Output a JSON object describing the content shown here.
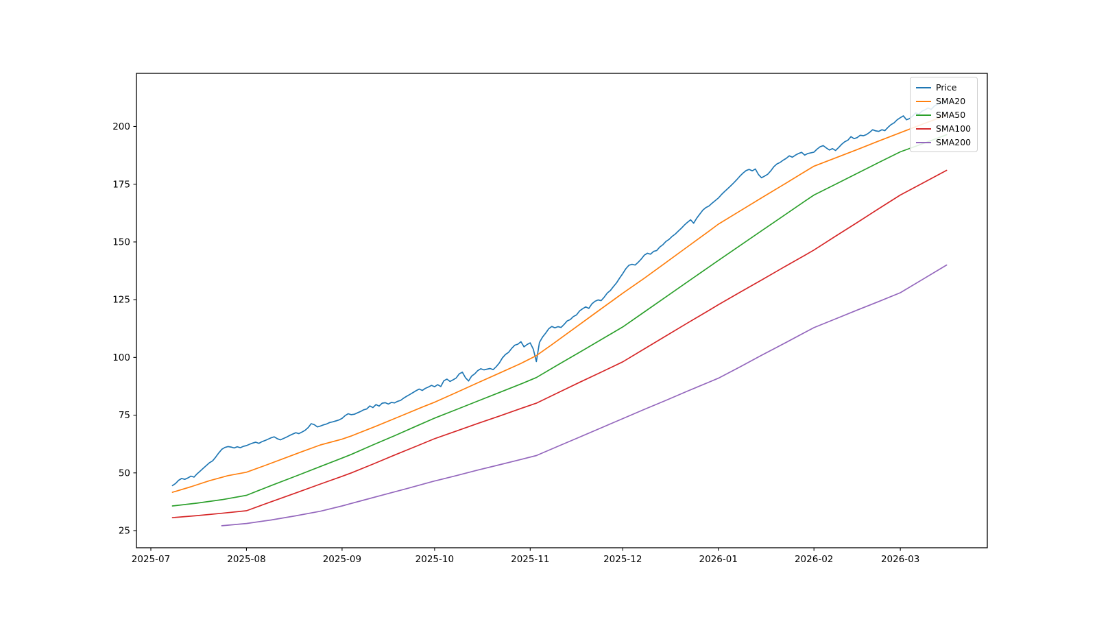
{
  "figure": {
    "kind": "matplotlib-line-figure",
    "background": "#ffffff"
  },
  "chart_data": {
    "type": "line",
    "title": "",
    "xlabel": "",
    "ylabel": "",
    "grid": false,
    "x_unit": "days_since_2025-07-01",
    "x_axis": {
      "range_days": [
        -4.67,
        271.2
      ],
      "ticks": [
        {
          "label": "2025-07",
          "day": 0
        },
        {
          "label": "2025-08",
          "day": 31
        },
        {
          "label": "2025-09",
          "day": 62
        },
        {
          "label": "2025-10",
          "day": 92
        },
        {
          "label": "2025-11",
          "day": 123
        },
        {
          "label": "2025-12",
          "day": 153
        },
        {
          "label": "2026-01",
          "day": 184
        },
        {
          "label": "2026-02",
          "day": 215
        },
        {
          "label": "2026-03",
          "day": 243
        }
      ]
    },
    "y_axis": {
      "range": [
        17.58,
        223.0
      ],
      "ticks": [
        {
          "label": "25",
          "value": 25
        },
        {
          "label": "50",
          "value": 50
        },
        {
          "label": "75",
          "value": 75
        },
        {
          "label": "100",
          "value": 100
        },
        {
          "label": "125",
          "value": 125
        },
        {
          "label": "150",
          "value": 150
        },
        {
          "label": "175",
          "value": 175
        },
        {
          "label": "200",
          "value": 200
        }
      ]
    },
    "legend": {
      "position": "upper-right",
      "entries": [
        "Price",
        "SMA20",
        "SMA50",
        "SMA100",
        "SMA200"
      ]
    },
    "series": [
      {
        "name": "Price",
        "color": "#1f77b4",
        "start_day": 7,
        "step": 1,
        "values": [
          44.5,
          45.4,
          46.8,
          47.6,
          47.2,
          47.8,
          48.6,
          48.2,
          49.6,
          50.8,
          52.0,
          53.2,
          54.4,
          55.2,
          56.8,
          58.6,
          60.2,
          61.0,
          61.4,
          61.2,
          60.8,
          61.3,
          60.9,
          61.5,
          61.8,
          62.4,
          62.9,
          63.3,
          62.8,
          63.5,
          64.0,
          64.6,
          65.2,
          65.6,
          64.8,
          64.3,
          64.9,
          65.5,
          66.2,
          66.8,
          67.4,
          67.0,
          67.7,
          68.4,
          69.6,
          71.3,
          70.9,
          69.9,
          70.3,
          70.8,
          71.2,
          71.8,
          72.1,
          72.5,
          72.9,
          73.6,
          74.8,
          75.6,
          75.2,
          75.4,
          76.0,
          76.6,
          77.3,
          77.7,
          79.0,
          78.3,
          79.6,
          78.9,
          80.2,
          80.4,
          79.8,
          80.5,
          80.3,
          81.0,
          81.4,
          82.4,
          83.2,
          84.0,
          84.8,
          85.6,
          86.3,
          85.7,
          86.6,
          87.2,
          87.9,
          87.3,
          88.2,
          87.4,
          89.9,
          90.6,
          89.6,
          90.3,
          91.1,
          92.9,
          93.6,
          91.2,
          89.8,
          91.9,
          92.9,
          94.3,
          95.1,
          94.6,
          94.9,
          95.2,
          94.7,
          96.0,
          97.6,
          99.8,
          101.3,
          102.2,
          103.9,
          105.3,
          105.7,
          106.8,
          104.6,
          105.6,
          106.3,
          103.6,
          98.2,
          106.5,
          108.8,
          110.5,
          112.4,
          113.4,
          112.8,
          113.3,
          113.0,
          114.3,
          115.8,
          116.4,
          117.7,
          118.4,
          120.1,
          121.1,
          121.9,
          121.2,
          123.2,
          124.3,
          124.9,
          124.6,
          126.1,
          127.9,
          129.0,
          130.7,
          132.3,
          134.4,
          136.3,
          138.4,
          139.9,
          140.3,
          140.0,
          141.2,
          142.6,
          144.3,
          145.1,
          144.7,
          145.9,
          146.3,
          147.8,
          148.8,
          150.2,
          151.1,
          152.4,
          153.4,
          154.7,
          155.9,
          157.3,
          158.5,
          159.6,
          158.1,
          160.3,
          162.1,
          163.8,
          164.9,
          165.6,
          166.8,
          167.9,
          169.0,
          170.5,
          171.8,
          173.0,
          174.3,
          175.6,
          177.0,
          178.5,
          179.8,
          180.9,
          181.4,
          180.8,
          181.6,
          179.2,
          177.8,
          178.5,
          179.3,
          180.8,
          182.6,
          183.8,
          184.4,
          185.4,
          186.2,
          187.3,
          186.7,
          187.6,
          188.3,
          188.8,
          187.6,
          188.3,
          188.6,
          188.9,
          190.2,
          191.2,
          191.7,
          190.7,
          189.8,
          190.4,
          189.6,
          190.9,
          192.3,
          193.4,
          194.1,
          195.6,
          194.7,
          195.2,
          196.2,
          196.0,
          196.5,
          197.4,
          198.6,
          198.1,
          197.9,
          198.6,
          198.2,
          199.6,
          200.8,
          201.6,
          202.9,
          203.8,
          204.6,
          202.9,
          203.4,
          204.5,
          205.9,
          205.3,
          206.6,
          207.2,
          208.0,
          207.4,
          208.8,
          209.6,
          210.3,
          209.8,
          210.9
        ]
      },
      {
        "name": "SMA20",
        "color": "#ff7f0e",
        "points": [
          [
            7,
            41.6
          ],
          [
            13,
            44.0
          ],
          [
            19,
            46.6
          ],
          [
            25,
            48.8
          ],
          [
            31,
            50.3
          ],
          [
            37,
            53.2
          ],
          [
            43,
            56.2
          ],
          [
            49,
            59.2
          ],
          [
            55,
            62.1
          ],
          [
            62,
            64.6
          ],
          [
            65,
            66.0
          ],
          [
            73,
            70.2
          ],
          [
            81,
            74.6
          ],
          [
            88,
            78.5
          ],
          [
            92,
            80.6
          ],
          [
            99,
            84.8
          ],
          [
            106,
            89.0
          ],
          [
            113,
            93.2
          ],
          [
            120,
            97.4
          ],
          [
            125,
            100.8
          ],
          [
            130,
            105.5
          ],
          [
            137,
            112.3
          ],
          [
            144,
            119.1
          ],
          [
            150,
            124.9
          ],
          [
            153,
            127.8
          ],
          [
            160,
            134.3
          ],
          [
            167,
            141.1
          ],
          [
            174,
            147.9
          ],
          [
            181,
            154.7
          ],
          [
            184,
            157.7
          ],
          [
            191,
            163.4
          ],
          [
            198,
            169.1
          ],
          [
            205,
            174.7
          ],
          [
            212,
            180.4
          ],
          [
            215,
            182.8
          ],
          [
            222,
            186.4
          ],
          [
            229,
            190.0
          ],
          [
            236,
            193.7
          ],
          [
            243,
            197.3
          ],
          [
            250,
            200.9
          ],
          [
            258,
            204.9
          ]
        ]
      },
      {
        "name": "SMA50",
        "color": "#2ca02c",
        "points": [
          [
            7,
            35.7
          ],
          [
            15,
            36.9
          ],
          [
            23,
            38.4
          ],
          [
            31,
            40.3
          ],
          [
            39,
            44.5
          ],
          [
            47,
            48.6
          ],
          [
            55,
            52.8
          ],
          [
            62,
            56.4
          ],
          [
            65,
            58.0
          ],
          [
            72,
            62.1
          ],
          [
            79,
            66.1
          ],
          [
            86,
            70.2
          ],
          [
            92,
            73.7
          ],
          [
            99,
            77.4
          ],
          [
            106,
            81.1
          ],
          [
            113,
            84.8
          ],
          [
            120,
            88.5
          ],
          [
            125,
            91.3
          ],
          [
            132,
            96.8
          ],
          [
            139,
            102.2
          ],
          [
            146,
            107.7
          ],
          [
            153,
            113.2
          ],
          [
            160,
            119.7
          ],
          [
            167,
            126.2
          ],
          [
            174,
            132.7
          ],
          [
            181,
            139.2
          ],
          [
            184,
            142.0
          ],
          [
            191,
            148.4
          ],
          [
            198,
            154.8
          ],
          [
            205,
            161.2
          ],
          [
            212,
            167.6
          ],
          [
            215,
            170.3
          ],
          [
            222,
            175.0
          ],
          [
            229,
            179.7
          ],
          [
            236,
            184.4
          ],
          [
            243,
            189.0
          ],
          [
            250,
            192.4
          ],
          [
            258,
            196.4
          ]
        ]
      },
      {
        "name": "SMA100",
        "color": "#d62728",
        "points": [
          [
            7,
            30.6
          ],
          [
            15,
            31.5
          ],
          [
            23,
            32.5
          ],
          [
            31,
            33.6
          ],
          [
            39,
            37.5
          ],
          [
            47,
            41.3
          ],
          [
            55,
            45.2
          ],
          [
            62,
            48.5
          ],
          [
            65,
            50.0
          ],
          [
            72,
            53.8
          ],
          [
            79,
            57.7
          ],
          [
            86,
            61.5
          ],
          [
            92,
            64.8
          ],
          [
            99,
            68.1
          ],
          [
            106,
            71.4
          ],
          [
            113,
            74.6
          ],
          [
            120,
            77.9
          ],
          [
            125,
            80.2
          ],
          [
            132,
            84.7
          ],
          [
            139,
            89.2
          ],
          [
            146,
            93.6
          ],
          [
            153,
            98.1
          ],
          [
            160,
            103.7
          ],
          [
            167,
            109.3
          ],
          [
            174,
            114.9
          ],
          [
            181,
            120.4
          ],
          [
            184,
            122.8
          ],
          [
            191,
            128.2
          ],
          [
            198,
            133.5
          ],
          [
            205,
            138.9
          ],
          [
            212,
            144.2
          ],
          [
            215,
            146.5
          ],
          [
            222,
            152.5
          ],
          [
            229,
            158.4
          ],
          [
            236,
            164.4
          ],
          [
            243,
            170.3
          ],
          [
            250,
            175.3
          ],
          [
            258,
            181.0
          ]
        ]
      },
      {
        "name": "SMA200",
        "color": "#9467bd",
        "points": [
          [
            23,
            27.1
          ],
          [
            31,
            28.1
          ],
          [
            39,
            29.6
          ],
          [
            47,
            31.4
          ],
          [
            55,
            33.4
          ],
          [
            62,
            35.7
          ],
          [
            69,
            38.2
          ],
          [
            76,
            40.7
          ],
          [
            83,
            43.2
          ],
          [
            92,
            46.5
          ],
          [
            99,
            48.8
          ],
          [
            106,
            51.2
          ],
          [
            113,
            53.5
          ],
          [
            120,
            55.8
          ],
          [
            125,
            57.5
          ],
          [
            132,
            61.5
          ],
          [
            139,
            65.5
          ],
          [
            146,
            69.5
          ],
          [
            153,
            73.5
          ],
          [
            160,
            77.5
          ],
          [
            167,
            81.4
          ],
          [
            174,
            85.4
          ],
          [
            181,
            89.3
          ],
          [
            184,
            91.0
          ],
          [
            191,
            95.9
          ],
          [
            198,
            100.9
          ],
          [
            205,
            105.8
          ],
          [
            212,
            110.8
          ],
          [
            215,
            112.9
          ],
          [
            222,
            116.7
          ],
          [
            229,
            120.5
          ],
          [
            236,
            124.2
          ],
          [
            243,
            128.0
          ],
          [
            250,
            133.6
          ],
          [
            258,
            140.0
          ]
        ]
      }
    ]
  }
}
